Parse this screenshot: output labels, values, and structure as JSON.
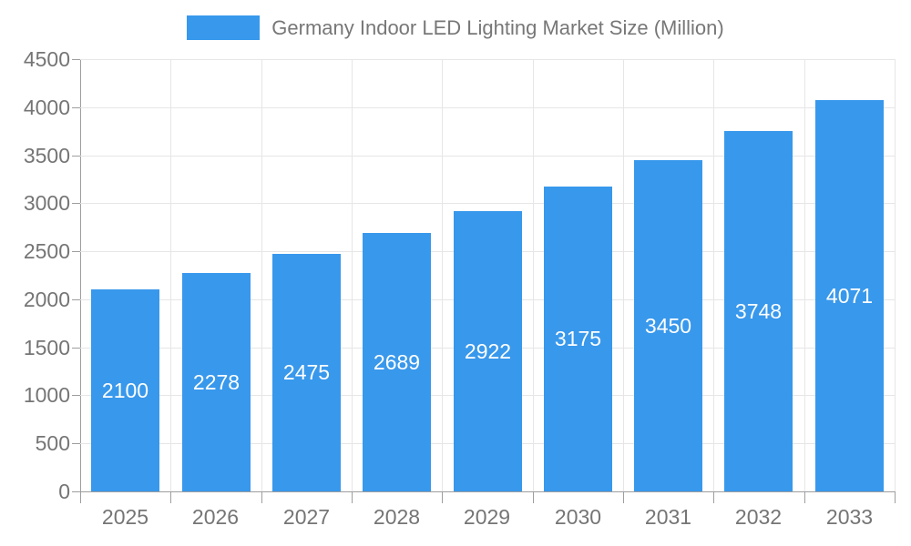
{
  "legend": {
    "label": "Germany Indoor LED Lighting Market Size (Million)"
  },
  "chart_data": {
    "type": "bar",
    "title": "Germany Indoor LED Lighting Market Size (Million)",
    "categories": [
      "2025",
      "2026",
      "2027",
      "2028",
      "2029",
      "2030",
      "2031",
      "2032",
      "2033"
    ],
    "values": [
      2100,
      2278,
      2475,
      2689,
      2922,
      3175,
      3450,
      3748,
      4071
    ],
    "bar_value_labels": [
      "2100",
      "2278",
      "2475",
      "2689",
      "2922",
      "3175",
      "3450",
      "3748",
      "4071"
    ],
    "xlabel": "",
    "ylabel": "",
    "ylim": [
      0,
      4500
    ],
    "ytick_step": 500,
    "ytick_labels": [
      "0",
      "500",
      "1000",
      "1500",
      "2000",
      "2500",
      "3000",
      "3500",
      "4000",
      "4500"
    ],
    "grid": true,
    "legend_position": "top-center",
    "colors": {
      "bar": "#3898EC",
      "bar_label_text": "#FFFFFF",
      "axis_text": "#757575",
      "title_text": "#777777",
      "gridline": "#E6E6E6",
      "axis_line": "#9E9E9E",
      "background": "#FFFFFF"
    }
  }
}
